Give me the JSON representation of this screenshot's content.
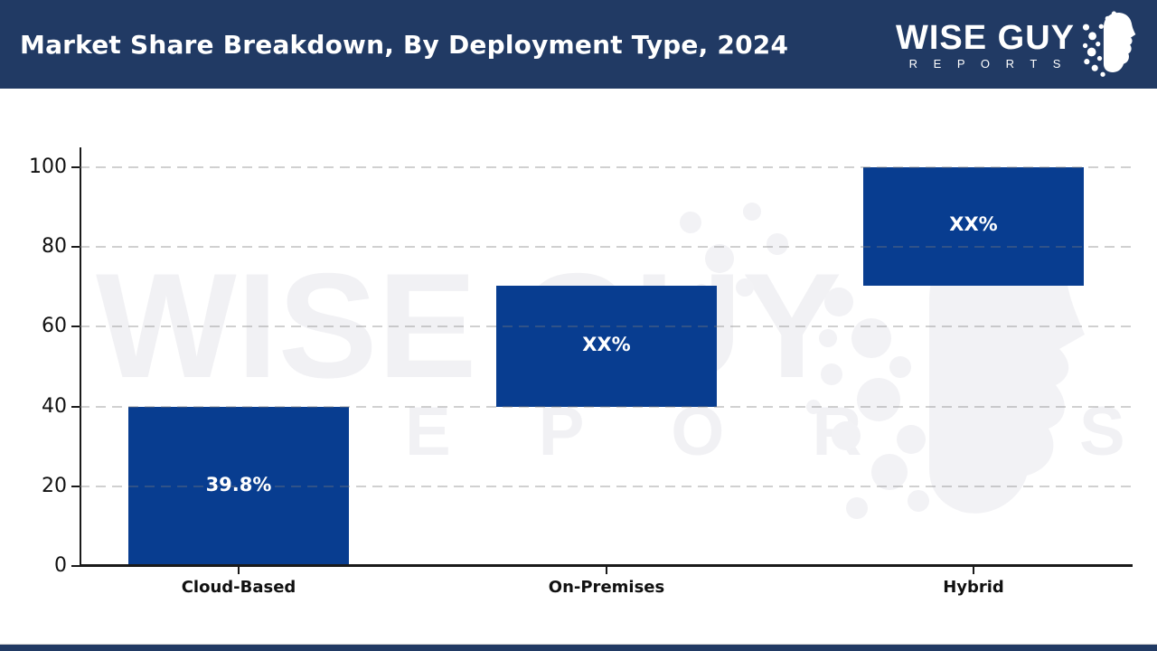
{
  "header": {
    "title": "Market Share Breakdown, By Deployment Type, 2024",
    "bg_color": "#213a64",
    "logo": {
      "line1": "WISE GUY",
      "line2": "R E P O R T S"
    }
  },
  "watermark": {
    "line1": "WISE GUY",
    "line2": "R E P O R T S"
  },
  "chart_data": {
    "type": "bar",
    "subtype": "stepped-waterfall",
    "title": "Market Share Breakdown, By Deployment Type, 2024",
    "categories": [
      "Cloud-Based",
      "On-Premises",
      "Hybrid"
    ],
    "segments": [
      {
        "category": "Cloud-Based",
        "label": "39.8%",
        "start": 0,
        "end": 39.8
      },
      {
        "category": "On-Premises",
        "label": "XX%",
        "start": 40,
        "end": 70.3
      },
      {
        "category": "Hybrid",
        "label": "XX%",
        "start": 70.3,
        "end": 100
      }
    ],
    "yticks": [
      0,
      20,
      40,
      60,
      80,
      100
    ],
    "ylim": [
      0,
      105
    ],
    "xlabel": "",
    "ylabel": "",
    "legend": "none",
    "grid": {
      "axis": "y",
      "style": "dashed",
      "color": "rgba(122,122,122,0.35)"
    },
    "bar_color": "#083d90",
    "bar_label_color": "#ffffff",
    "axis_color": "#1a1a1a",
    "tick_label_color": "#111111"
  },
  "footer": {
    "bg_color": "#213a64"
  }
}
